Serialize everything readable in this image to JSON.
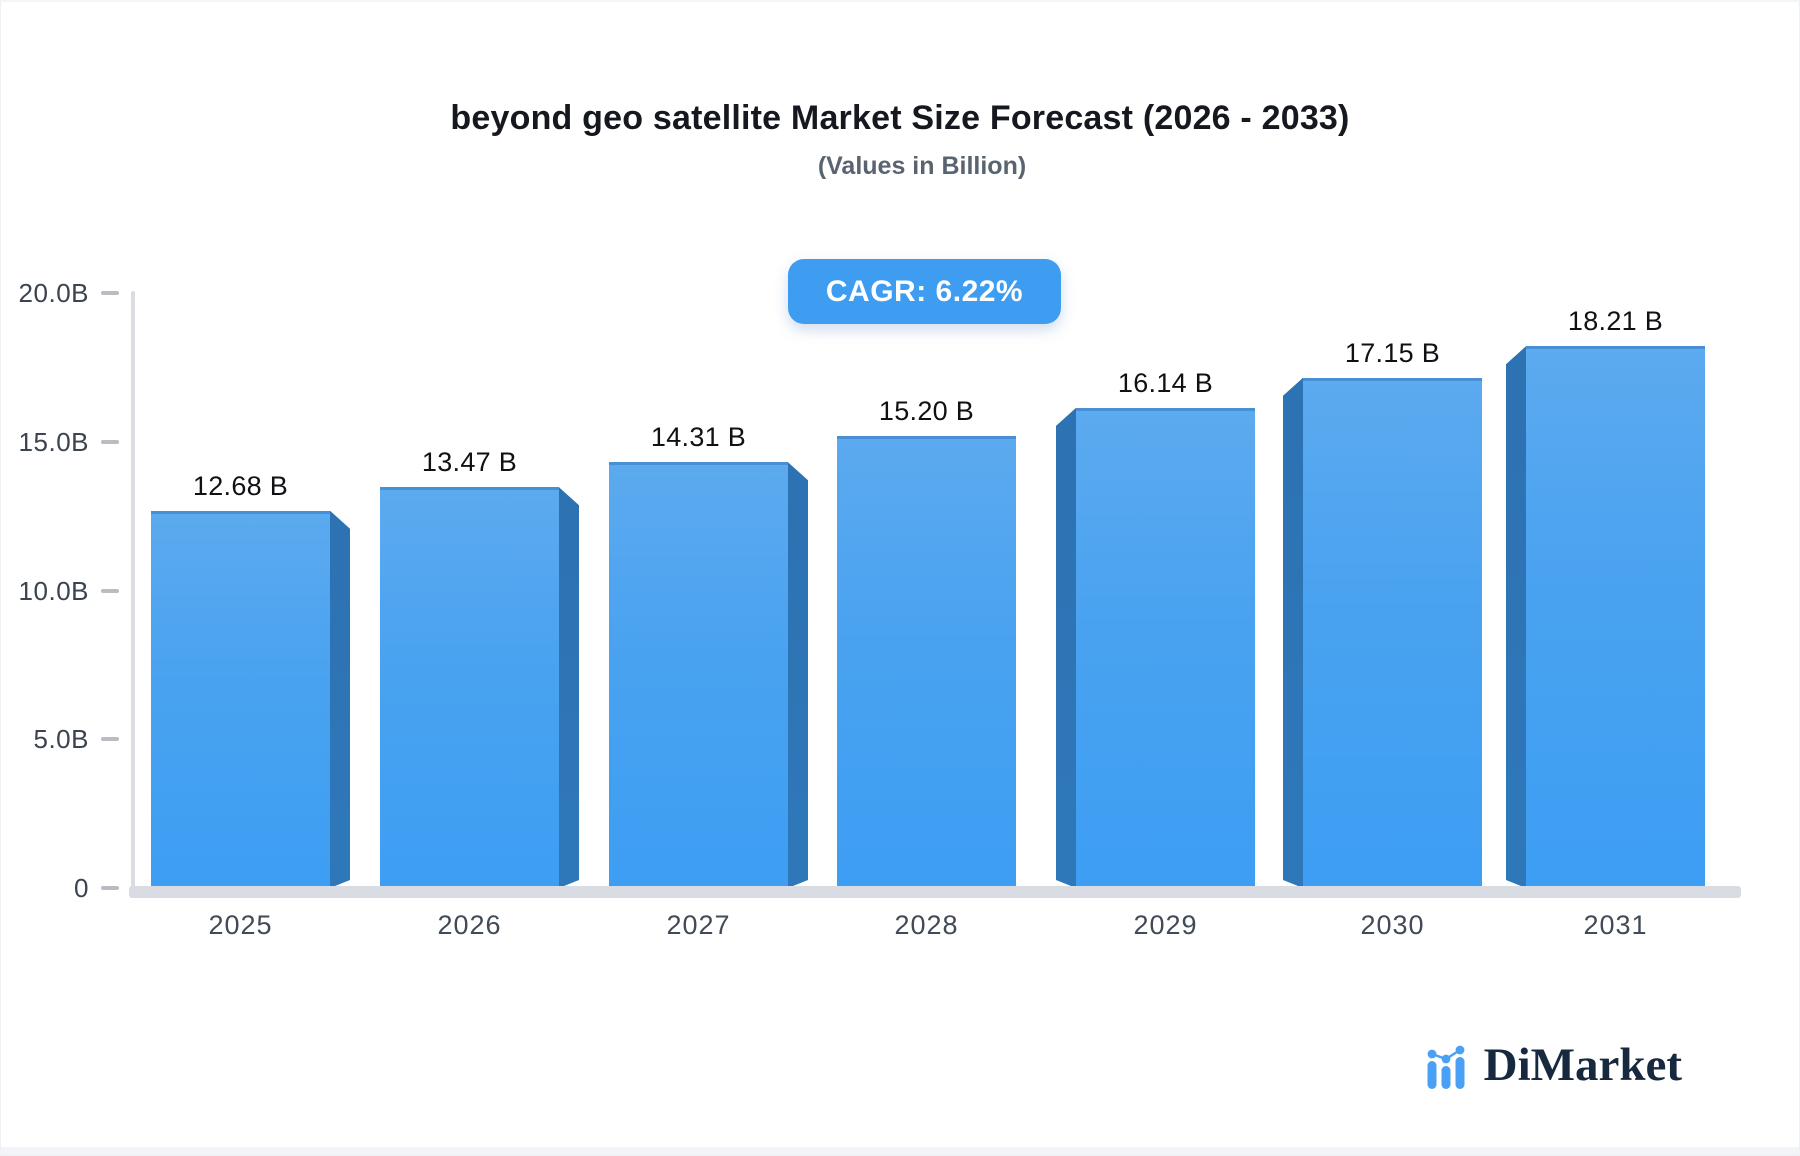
{
  "chart_data": {
    "type": "bar",
    "title": "beyond geo satellite Market Size Forecast (2026 - 2033)",
    "subtitle": "(Values in Billion)",
    "cagr_label": "CAGR: 6.22%",
    "cagr_value": "6.22%",
    "categories": [
      "2025",
      "2026",
      "2027",
      "2028",
      "2029",
      "2030",
      "2031"
    ],
    "values": [
      12.68,
      13.47,
      14.31,
      15.2,
      16.14,
      17.15,
      18.21
    ],
    "bar_labels": [
      "12.68 B",
      "13.47 B",
      "14.31 B",
      "15.20 B",
      "16.14 B",
      "17.15 B",
      "18.21 B"
    ],
    "unit": "Billion",
    "ylim": [
      0,
      20
    ],
    "yticks": [
      {
        "value": 0,
        "label": "0"
      },
      {
        "value": 5,
        "label": "5.0B"
      },
      {
        "value": 10,
        "label": "10.0B"
      },
      {
        "value": 15,
        "label": "15.0B"
      },
      {
        "value": 20,
        "label": "20.0B"
      }
    ],
    "grid": false,
    "legend": "none",
    "bar_color": "#3d9ef3",
    "bar_side_color": "#2e76b8",
    "style": "3d-perspective-center"
  },
  "badge": {
    "background": "#3e9cf1",
    "text_color": "#ffffff"
  },
  "logo": {
    "brand": "DiMarket",
    "icon": "mini-bar-chart-icon",
    "icon_color": "#4aa0f4",
    "text_color": "#17293e"
  }
}
